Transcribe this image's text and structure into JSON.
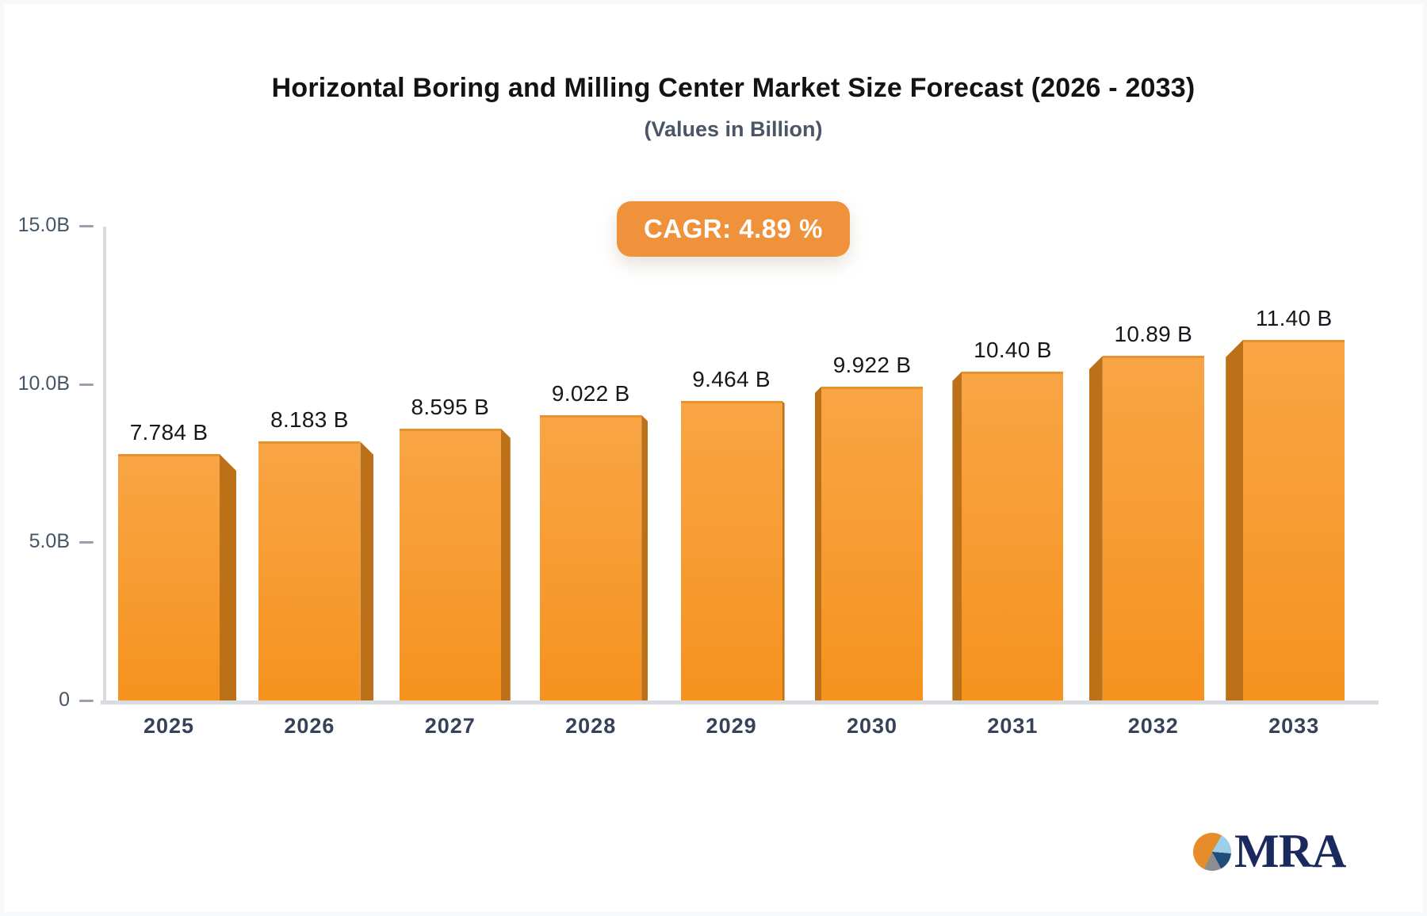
{
  "header": {
    "title": "Horizontal Boring and Milling Center Market Size Forecast (2026 - 2033)",
    "subtitle": "(Values in Billion)",
    "cagr_label": "CAGR: 4.89 %"
  },
  "chart_data": {
    "type": "bar",
    "title": "Horizontal Boring and Milling Center Market Size Forecast (2026 - 2033)",
    "subtitle": "(Values in Billion)",
    "cagr_percent": 4.89,
    "categories": [
      "2025",
      "2026",
      "2027",
      "2028",
      "2029",
      "2030",
      "2031",
      "2032",
      "2033"
    ],
    "values": [
      7.784,
      8.183,
      8.595,
      9.022,
      9.464,
      9.922,
      10.4,
      10.89,
      11.4
    ],
    "value_labels": [
      "7.784 B",
      "8.183 B",
      "8.595 B",
      "9.022 B",
      "9.464 B",
      "9.922 B",
      "10.40 B",
      "10.89 B",
      "11.40 B"
    ],
    "unit": "Billion",
    "xlabel": "",
    "ylabel": "",
    "ylim": [
      0,
      15
    ],
    "yticks": [
      {
        "value": 15,
        "label": "15.0B"
      },
      {
        "value": 10,
        "label": "10.0B"
      },
      {
        "value": 5,
        "label": "5.0B"
      },
      {
        "value": 0,
        "label": "0"
      }
    ],
    "grid": false,
    "legend_position": "none",
    "bar_style": "3d",
    "colors": {
      "bar_top": "#F9A545",
      "bar_bottom": "#F6921E",
      "bar_side": "#BC7119",
      "axis": "#D8DBE0",
      "tick_dash": "#99A1AD",
      "tick_text": "#475569",
      "category_text": "#36425A",
      "value_text": "#15181C",
      "badge_bg": "#F0923B",
      "badge_text": "#FFFFFF"
    }
  },
  "branding": {
    "logo_text": "MRA",
    "logo_colors": {
      "orange": "#E78C2A",
      "light_blue": "#9FCFE8",
      "navy": "#1F4E79",
      "gray": "#8E8E8E",
      "text": "#1B2A5E"
    }
  }
}
